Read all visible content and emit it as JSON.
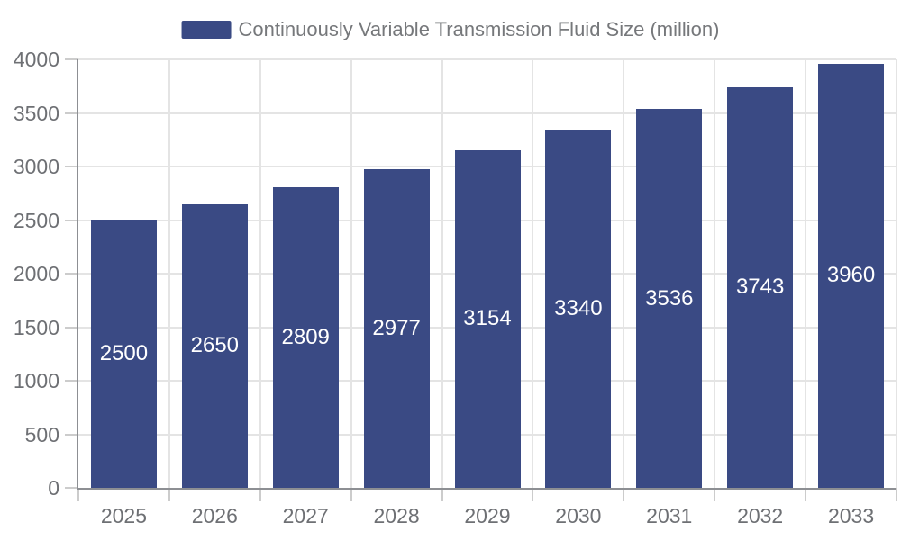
{
  "chart_data": {
    "type": "bar",
    "title": "",
    "series_name": "Continuously Variable Transmission Fluid Size (million)",
    "categories": [
      "2025",
      "2026",
      "2027",
      "2028",
      "2029",
      "2030",
      "2031",
      "2032",
      "2033"
    ],
    "values": [
      2500,
      2650,
      2809,
      2977,
      3154,
      3340,
      3536,
      3743,
      3960
    ],
    "bar_labels": [
      "2500",
      "2650",
      "2809",
      "2977",
      "3154",
      "3340",
      "3536",
      "3743",
      "3960"
    ],
    "xlabel": "",
    "ylabel": "",
    "ylim": [
      0,
      4000
    ],
    "y_tick_step": 500,
    "y_tick_labels": [
      "0",
      "500",
      "1000",
      "1500",
      "2000",
      "2500",
      "3000",
      "3500",
      "4000"
    ],
    "grid": true,
    "legend_position": "top-center",
    "bar_label_position": "center-inside",
    "colors": {
      "bar": "#3A4A84",
      "bar_label": "#ffffff",
      "axis_line": "#8d8f93",
      "tick_mark": "#cccccc",
      "grid_line": "#e4e4e4",
      "tick_label": "#6e7074",
      "legend_text": "#76787b",
      "background": "#ffffff"
    }
  }
}
